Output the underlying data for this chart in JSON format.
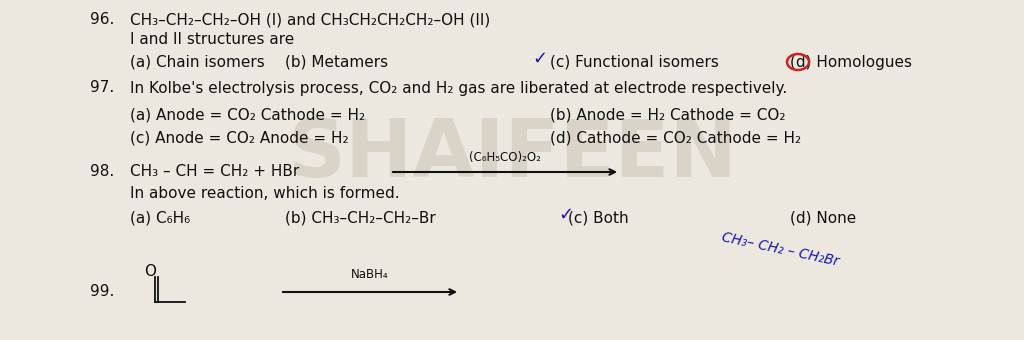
{
  "background_color": "#ede8df",
  "text_color": "#111111",
  "watermark_color": "#c8c0b0",
  "blue_color": "#1a1aaa",
  "red_color": "#cc2222",
  "q96_number": "96.",
  "q96_line1": "CH₃–CH₂–CH₂–OH (I) and CH₃CH₂CH₂CH₂–OH (II)",
  "q96_line2": "I and II structures are",
  "q96_a": "(a) Chain isomers",
  "q96_b": "(b) Metamers",
  "q96_c": "(c) Functional isomers",
  "q96_d": "(d) Homologues",
  "q97_number": "97.",
  "q97_line1": "In Kolbe's electrolysis process, CO₂ and H₂ gas are liberated at electrode respectively.",
  "q97_a": "(a) Anode = CO₂ Cathode = H₂",
  "q97_b": "(b) Anode = H₂ Cathode = CO₂",
  "q97_c": "(c) Anode = CO₂ Anode = H₂",
  "q97_d": "(d) Cathode = CO₂ Cathode = H₂",
  "q98_number": "98.",
  "q98_rxn": "CH₃ – CH = CH₂ + HBr",
  "q98_arrow_label": "(C₆H₅CO)₂O₂",
  "q98_line2": "In above reaction, which is formed.",
  "q98_a": "(a) C₆H₆",
  "q98_b": "(b) CH₃–CH₂–CH₂–Br",
  "q98_c": "(c) Both",
  "q98_d": "(d) None",
  "handwritten": "CH₃– CH₂ – CH₂Br",
  "q99_number": "99.",
  "nabh4": "NaBH₄",
  "watermark": "SHAIFEEN"
}
